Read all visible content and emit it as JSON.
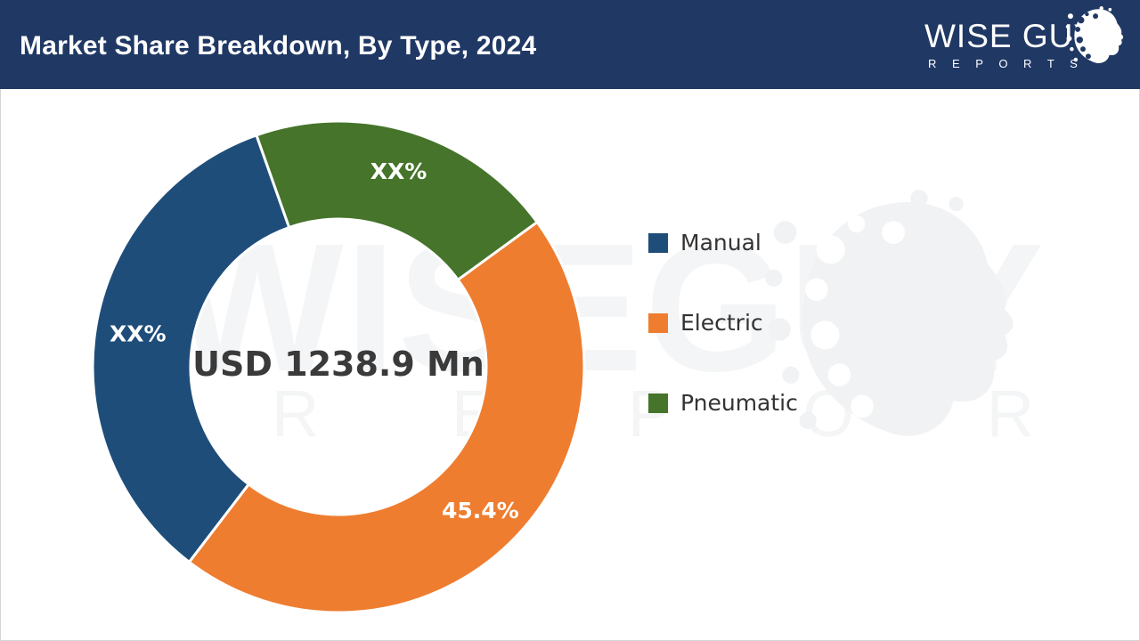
{
  "header": {
    "title": "Market Share Breakdown, By Type, 2024",
    "bg_color": "#203864",
    "logo": {
      "line1": "WISE GUY",
      "line2": "R E P O R T S"
    }
  },
  "watermark": {
    "line1": "WISEGUY",
    "line2": "R E P O R T S"
  },
  "legend": [
    {
      "label": "Manual",
      "color": "#1e4d7a"
    },
    {
      "label": "Electric",
      "color": "#ee7d30"
    },
    {
      "label": "Pneumatic",
      "color": "#45742a"
    }
  ],
  "chart_data": {
    "type": "pie",
    "subtype": "donut",
    "title": "Market Share Breakdown, By Type, 2024",
    "center_text": "USD 1238.9 Mn",
    "direction": "clockwise",
    "start_angle_deg": -19.5,
    "legend_position": "right",
    "slices": [
      {
        "name": "Pneumatic",
        "color": "#45742a",
        "label_shown": "XX%",
        "value_pct": 20.4,
        "arc_deg": 73.4
      },
      {
        "name": "Electric",
        "color": "#ee7d30",
        "label_shown": "45.4%",
        "value_pct": 45.4,
        "arc_deg": 163.4
      },
      {
        "name": "Manual",
        "color": "#1e4d7a",
        "label_shown": "XX%",
        "value_pct": 34.2,
        "arc_deg": 123.2
      }
    ]
  },
  "colors": {
    "header_bg": "#203864",
    "center_text_color": "#3a3a3a",
    "legend_text_color": "#333333",
    "watermark_color": "#f4f5f6"
  }
}
